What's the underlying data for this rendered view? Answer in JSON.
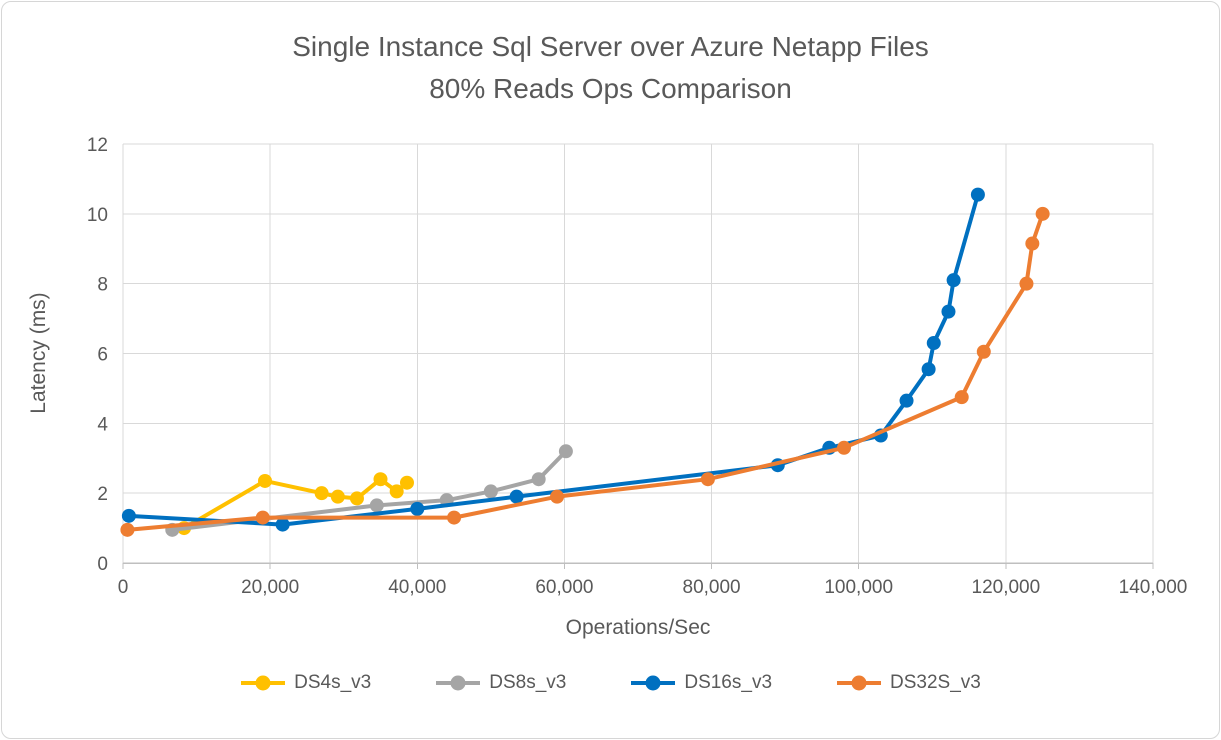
{
  "chart_data": {
    "type": "line",
    "title_line1": "Single Instance Sql Server over Azure Netapp Files",
    "title_line2": "80% Reads Ops Comparison",
    "xlabel": "Operations/Sec",
    "ylabel": "Latency (ms)",
    "xlim": [
      0,
      140000
    ],
    "ylim": [
      0,
      12
    ],
    "x_ticks": [
      0,
      20000,
      40000,
      60000,
      80000,
      100000,
      120000,
      140000
    ],
    "x_tick_labels": [
      "0",
      "20,000",
      "40,000",
      "60,000",
      "80,000",
      "100,000",
      "120,000",
      "140,000"
    ],
    "y_ticks": [
      0,
      2,
      4,
      6,
      8,
      10,
      12
    ],
    "y_tick_labels": [
      "0",
      "2",
      "4",
      "6",
      "8",
      "10",
      "12"
    ],
    "grid": "both",
    "legend_position": "bottom",
    "colors": {
      "text": "#595959",
      "gridline": "#d9d9d9",
      "axis_line": "#bfbfbf",
      "frame_border": "#d6d6d6",
      "background": "#ffffff"
    },
    "series": [
      {
        "name": "DS4s_v3",
        "color": "#FFC000",
        "points": [
          [
            8300,
            1.0
          ],
          [
            19300,
            2.35
          ],
          [
            27000,
            2.0
          ],
          [
            29200,
            1.9
          ],
          [
            31800,
            1.85
          ],
          [
            35000,
            2.4
          ],
          [
            37200,
            2.05
          ],
          [
            38600,
            2.3
          ]
        ]
      },
      {
        "name": "DS8s_v3",
        "color": "#A5A5A5",
        "points": [
          [
            6700,
            0.95
          ],
          [
            34500,
            1.65
          ],
          [
            44000,
            1.8
          ],
          [
            50000,
            2.05
          ],
          [
            56500,
            2.4
          ],
          [
            60200,
            3.2
          ]
        ]
      },
      {
        "name": "DS16s_v3",
        "color": "#0070C0",
        "points": [
          [
            800,
            1.35
          ],
          [
            21700,
            1.1
          ],
          [
            40000,
            1.55
          ],
          [
            53500,
            1.9
          ],
          [
            89000,
            2.8
          ],
          [
            96000,
            3.3
          ],
          [
            103000,
            3.65
          ],
          [
            106500,
            4.65
          ],
          [
            109500,
            5.55
          ],
          [
            110200,
            6.3
          ],
          [
            112200,
            7.2
          ],
          [
            112900,
            8.1
          ],
          [
            116200,
            10.55
          ]
        ]
      },
      {
        "name": "DS32S_v3",
        "color": "#ED7D31",
        "points": [
          [
            600,
            0.95
          ],
          [
            19000,
            1.3
          ],
          [
            45000,
            1.3
          ],
          [
            59000,
            1.9
          ],
          [
            79500,
            2.4
          ],
          [
            98000,
            3.3
          ],
          [
            114000,
            4.75
          ],
          [
            117000,
            6.05
          ],
          [
            122800,
            8.0
          ],
          [
            123600,
            9.15
          ],
          [
            125000,
            10.0
          ]
        ]
      }
    ]
  }
}
